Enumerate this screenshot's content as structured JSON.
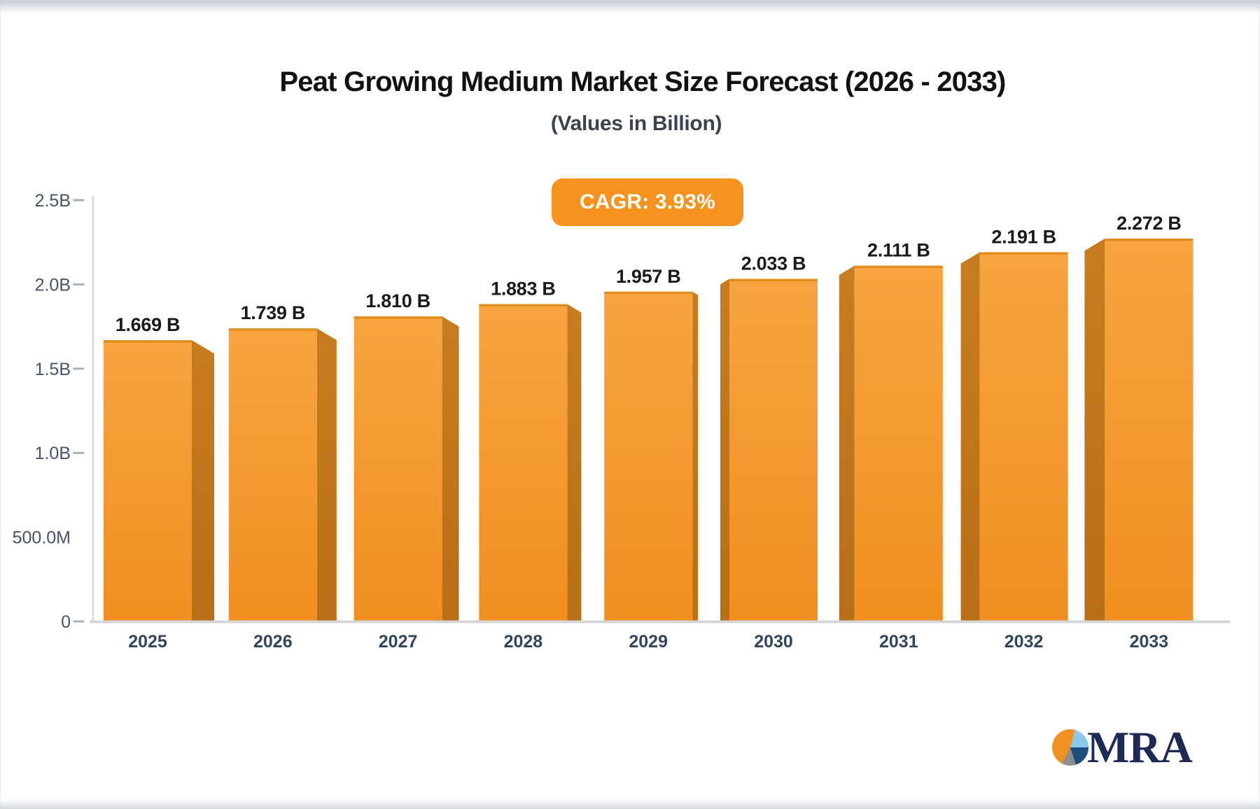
{
  "chart_data": {
    "type": "bar",
    "title": "Peat Growing Medium Market Size Forecast (2026 - 2033)",
    "subtitle": "(Values in Billion)",
    "cagr_label": "CAGR: 3.93%",
    "categories": [
      "2025",
      "2026",
      "2027",
      "2028",
      "2029",
      "2030",
      "2031",
      "2032",
      "2033"
    ],
    "values": [
      1.669,
      1.739,
      1.81,
      1.883,
      1.957,
      2.033,
      2.111,
      2.191,
      2.272
    ],
    "value_labels": [
      "1.669 B",
      "1.739 B",
      "1.810 B",
      "1.883 B",
      "1.957 B",
      "2.033 B",
      "2.111 B",
      "2.191 B",
      "2.272 B"
    ],
    "unit": "Billion USD",
    "ylim": [
      0,
      2.5
    ],
    "y_axis_ticks": [
      {
        "label": "2.5B",
        "value": 2.5,
        "dash": true
      },
      {
        "label": "2.0B",
        "value": 2.0,
        "dash": true
      },
      {
        "label": "1.5B",
        "value": 1.5,
        "dash": true
      },
      {
        "label": "1.0B",
        "value": 1.0,
        "dash": true
      },
      {
        "label": "500.0M",
        "value": 0.5,
        "dash": false
      },
      {
        "label": "0",
        "value": 0,
        "dash": true
      }
    ],
    "grid": false,
    "legend": false,
    "colors": {
      "bar_face_top": "#F7A440",
      "bar_face_bottom": "#F18E1F",
      "bar_side": "#BF7519",
      "bar_top_edge": "#E28E1E",
      "axis_line": "#D9DCE0",
      "baseline": "#D2D6DA",
      "tick_dash": "#A9B0B9",
      "badge_bg": "#F6921E"
    }
  },
  "logo": {
    "text": "MRA"
  }
}
